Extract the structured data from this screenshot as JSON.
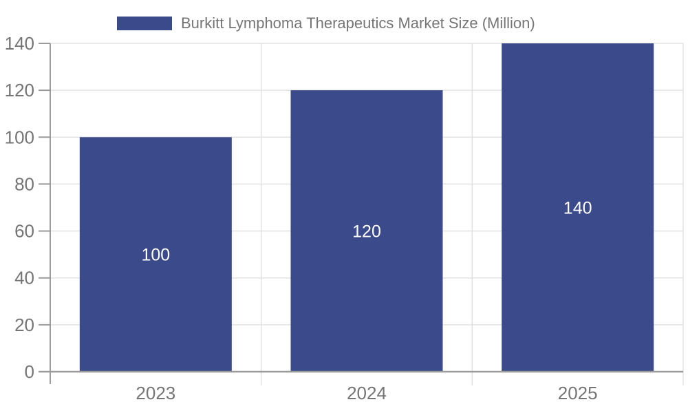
{
  "chart_data": {
    "type": "bar",
    "title": "Burkitt Lymphoma Therapeutics Market Size (Million)",
    "legend_position": "top-center",
    "categories": [
      "2023",
      "2024",
      "2025"
    ],
    "values": [
      100,
      120,
      140
    ],
    "xlabel": "",
    "ylabel": "",
    "ylim": [
      0,
      140
    ],
    "yticks": [
      0,
      20,
      40,
      60,
      80,
      100,
      120,
      140
    ],
    "grid": true,
    "value_label_position": "inside-middle",
    "colors": {
      "bar": "#3A4A8A",
      "axis_line": "#9B9B9B",
      "grid_line": "#E2E2E2",
      "tick_text": "#757575",
      "value_text": "#FFFFFF",
      "background": "#FFFFFF"
    }
  }
}
